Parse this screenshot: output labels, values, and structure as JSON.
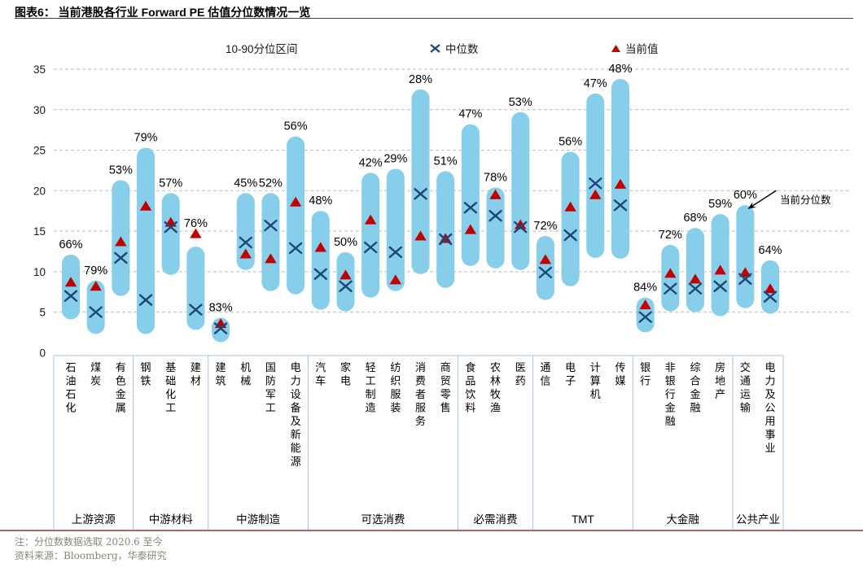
{
  "header": {
    "title": "图表6：  当前港股各行业 Forward PE 估值分位数情况一览"
  },
  "legend": {
    "range_label": "10-90分位区间",
    "median_label": "中位数",
    "current_label": "当前值"
  },
  "annotation": {
    "text": "当前分位数",
    "points_to": "交通运输"
  },
  "notes": {
    "note": "注：分位数数据选取 2020.6 至今",
    "source": "资料来源：Bloomberg，华泰研究"
  },
  "colors": {
    "bar": "#87CEEB",
    "median": "#1F4575",
    "current": "#C00000",
    "grid": "#C8C8C8",
    "box_border": "#A9C4DE",
    "bottom_rule": "#953735",
    "axis_text": "#1a1a1a",
    "label_text": "#000000"
  },
  "chart_data": {
    "type": "range-bar",
    "title": "当前港股各行业 Forward PE 估值分位数情况一览",
    "ylabel": "Forward PE",
    "ylim": [
      0,
      35
    ],
    "ytick_step": 5,
    "grid": true,
    "legend_position": "top",
    "groups": [
      {
        "name": "上游资源",
        "count": 3
      },
      {
        "name": "中游材料",
        "count": 3
      },
      {
        "name": "中游制造",
        "count": 4
      },
      {
        "name": "可选消费",
        "count": 6
      },
      {
        "name": "必需消费",
        "count": 3
      },
      {
        "name": "TMT",
        "count": 4
      },
      {
        "name": "大金融",
        "count": 4
      },
      {
        "name": "公共产业",
        "count": 2
      }
    ],
    "items": [
      {
        "name": "石油石化",
        "group": "上游资源",
        "p10": 4.1,
        "p90": 12.1,
        "median": 7.0,
        "current": 8.7,
        "percentile": "66%"
      },
      {
        "name": "煤炭",
        "group": "上游资源",
        "p10": 2.3,
        "p90": 8.9,
        "median": 5.0,
        "current": 8.2,
        "percentile": "79%"
      },
      {
        "name": "有色金属",
        "group": "上游资源",
        "p10": 7.0,
        "p90": 21.3,
        "median": 11.7,
        "current": 13.7,
        "percentile": "53%"
      },
      {
        "name": "钢铁",
        "group": "中游材料",
        "p10": 2.3,
        "p90": 25.3,
        "median": 6.5,
        "current": 18.1,
        "percentile": "79%"
      },
      {
        "name": "基础化工",
        "group": "中游材料",
        "p10": 9.6,
        "p90": 19.7,
        "median": 15.5,
        "current": 16.1,
        "percentile": "57%"
      },
      {
        "name": "建材",
        "group": "中游材料",
        "p10": 2.8,
        "p90": 13.1,
        "median": 5.3,
        "current": 14.7,
        "percentile": "76%"
      },
      {
        "name": "建筑",
        "group": "中游制造",
        "p10": 1.3,
        "p90": 4.3,
        "median": 3.0,
        "current": 3.6,
        "percentile": "83%"
      },
      {
        "name": "机械",
        "group": "中游制造",
        "p10": 10.2,
        "p90": 19.7,
        "median": 13.6,
        "current": 12.2,
        "percentile": "45%"
      },
      {
        "name": "国防军工",
        "group": "中游制造",
        "p10": 7.6,
        "p90": 19.7,
        "median": 15.7,
        "current": 11.6,
        "percentile": "52%"
      },
      {
        "name": "电力设备及新能源",
        "group": "中游制造",
        "p10": 7.2,
        "p90": 26.7,
        "median": 12.9,
        "current": 18.6,
        "percentile": "56%"
      },
      {
        "name": "汽车",
        "group": "可选消费",
        "p10": 5.3,
        "p90": 17.5,
        "median": 9.7,
        "current": 13.0,
        "percentile": "48%"
      },
      {
        "name": "家电",
        "group": "可选消费",
        "p10": 5.1,
        "p90": 12.4,
        "median": 8.2,
        "current": 9.6,
        "percentile": "50%"
      },
      {
        "name": "轻工制造",
        "group": "可选消费",
        "p10": 6.8,
        "p90": 22.2,
        "median": 13.0,
        "current": 16.4,
        "percentile": "42%"
      },
      {
        "name": "纺织服装",
        "group": "可选消费",
        "p10": 7.6,
        "p90": 22.7,
        "median": 12.4,
        "current": 9.0,
        "percentile": "29%"
      },
      {
        "name": "消费者服务",
        "group": "可选消费",
        "p10": 9.7,
        "p90": 32.5,
        "median": 19.6,
        "current": 14.4,
        "percentile": "28%"
      },
      {
        "name": "商贸零售",
        "group": "可选消费",
        "p10": 8.0,
        "p90": 22.4,
        "median": 14.0,
        "current": 14.1,
        "percentile": "51%"
      },
      {
        "name": "食品饮料",
        "group": "必需消费",
        "p10": 10.7,
        "p90": 28.2,
        "median": 17.9,
        "current": 15.2,
        "percentile": "47%"
      },
      {
        "name": "农林牧渔",
        "group": "必需消费",
        "p10": 10.4,
        "p90": 20.4,
        "median": 16.9,
        "current": 19.5,
        "percentile": "78%"
      },
      {
        "name": "医药",
        "group": "必需消费",
        "p10": 10.2,
        "p90": 29.7,
        "median": 15.5,
        "current": 15.8,
        "percentile": "53%"
      },
      {
        "name": "通信",
        "group": "TMT",
        "p10": 6.5,
        "p90": 14.4,
        "median": 9.9,
        "current": 11.5,
        "percentile": "72%"
      },
      {
        "name": "电子",
        "group": "TMT",
        "p10": 8.2,
        "p90": 24.8,
        "median": 14.5,
        "current": 18.0,
        "percentile": "56%"
      },
      {
        "name": "计算机",
        "group": "TMT",
        "p10": 11.7,
        "p90": 32.0,
        "median": 20.9,
        "current": 19.5,
        "percentile": "47%"
      },
      {
        "name": "传媒",
        "group": "TMT",
        "p10": 11.6,
        "p90": 33.8,
        "median": 18.2,
        "current": 20.8,
        "percentile": "48%"
      },
      {
        "name": "银行",
        "group": "大金融",
        "p10": 2.5,
        "p90": 6.8,
        "median": 4.4,
        "current": 5.9,
        "percentile": "84%"
      },
      {
        "name": "非银行金融",
        "group": "大金融",
        "p10": 5.1,
        "p90": 13.3,
        "median": 7.9,
        "current": 9.8,
        "percentile": "72%"
      },
      {
        "name": "综合金融",
        "group": "大金融",
        "p10": 5.0,
        "p90": 15.4,
        "median": 7.9,
        "current": 9.1,
        "percentile": "68%"
      },
      {
        "name": "房地产",
        "group": "大金融",
        "p10": 4.5,
        "p90": 17.1,
        "median": 8.2,
        "current": 10.2,
        "percentile": "59%"
      },
      {
        "name": "交通运输",
        "group": "公共产业",
        "p10": 5.5,
        "p90": 18.2,
        "median": 9.1,
        "current": 9.9,
        "percentile": "60%"
      },
      {
        "name": "电力及公用事业",
        "group": "公共产业",
        "p10": 4.8,
        "p90": 11.4,
        "median": 6.9,
        "current": 7.9,
        "percentile": "64%"
      }
    ]
  }
}
